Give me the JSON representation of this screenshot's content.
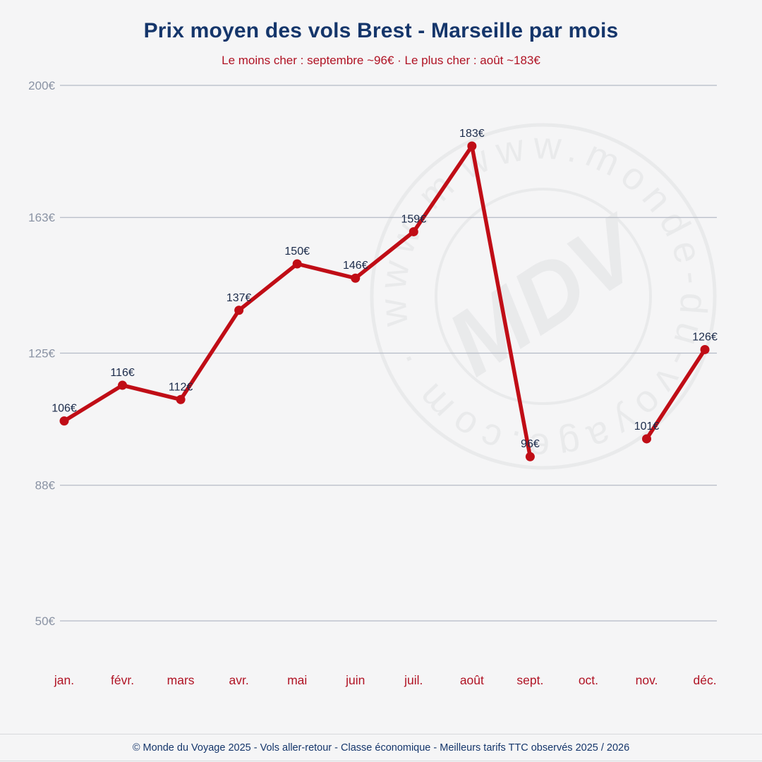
{
  "header": {
    "title": "Prix moyen des vols Brest - Marseille par mois",
    "subtitle": "Le moins cher : septembre ~96€ · Le plus cher : août ~183€"
  },
  "chart_data": {
    "type": "line",
    "title": "Prix moyen des vols Brest - Marseille par mois",
    "categories": [
      "jan.",
      "févr.",
      "mars",
      "avr.",
      "mai",
      "juin",
      "juil.",
      "août",
      "sept.",
      "oct.",
      "nov.",
      "déc."
    ],
    "values": [
      106,
      116,
      112,
      137,
      150,
      146,
      159,
      183,
      96,
      null,
      101,
      126
    ],
    "unit": "€",
    "point_labels": [
      "106€",
      "116€",
      "112€",
      "137€",
      "150€",
      "146€",
      "159€",
      "183€",
      "96€",
      null,
      "101€",
      "126€"
    ],
    "yticks": [
      200,
      163,
      125,
      88,
      50
    ],
    "ytick_labels": [
      "200€",
      "163€",
      "125€",
      "88€",
      "50€"
    ],
    "ylim": [
      50,
      200
    ],
    "grid": true,
    "legend": "none",
    "line_color": "#c00d16",
    "label_color": "#1b2b4a",
    "axis_color": "#8a93a4",
    "month_color": "#b01324",
    "grid_color": "#b5bac6"
  },
  "watermark": {
    "ring_text": "www.monde-du-voyage.com",
    "center_text": "MDV"
  },
  "footer": {
    "text": "© Monde du Voyage 2025 - Vols aller-retour - Classe économique - Meilleurs tarifs TTC observés 2025 / 2026"
  }
}
